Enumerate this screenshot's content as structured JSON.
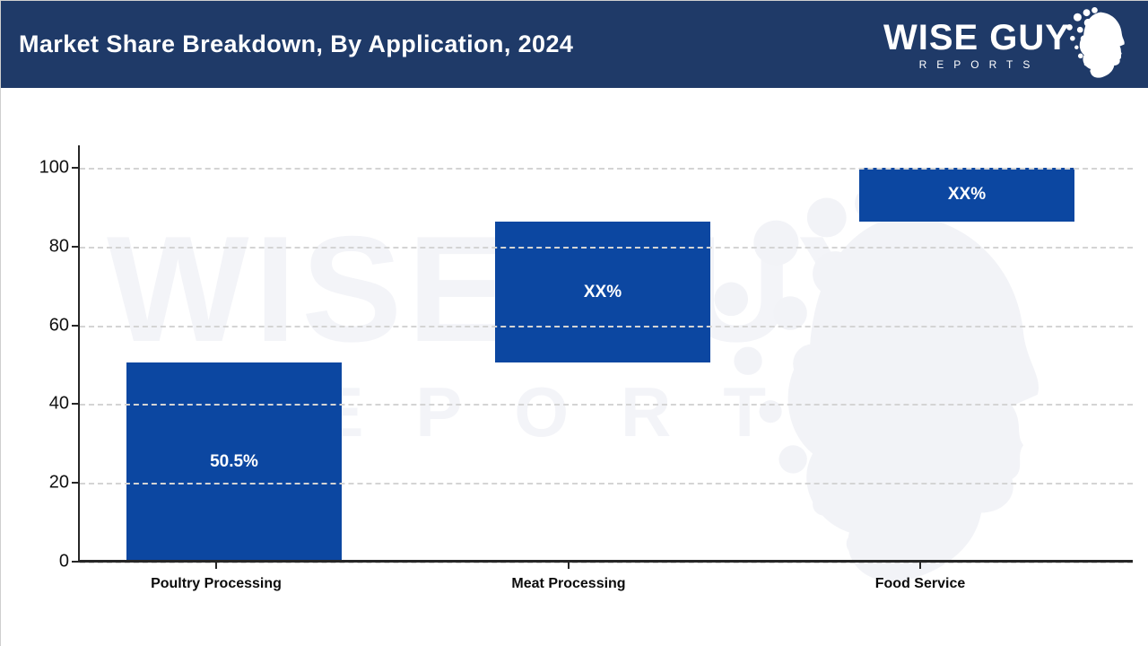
{
  "header": {
    "title": "Market Share Breakdown, By Application, 2024",
    "brand": {
      "line1": "WISE GUY",
      "line2": "REPORTS"
    }
  },
  "watermark": {
    "line1": "WISE GUY",
    "line2": "REPORTS"
  },
  "chart_data": {
    "type": "bar",
    "subtype": "floating-waterfall",
    "title": "Market Share Breakdown, By Application, 2024",
    "categories": [
      "Poultry Processing",
      "Meat Processing",
      "Food Service"
    ],
    "segments": [
      {
        "category": "Poultry Processing",
        "start": 0,
        "end": 50.5,
        "label": "50.5%"
      },
      {
        "category": "Meat Processing",
        "start": 50.5,
        "end": 86.3,
        "label": "XX%"
      },
      {
        "category": "Food Service",
        "start": 86.3,
        "end": 100,
        "label": "XX%"
      }
    ],
    "ylim": [
      0,
      100
    ],
    "yticks": [
      "0",
      "20",
      "40",
      "60",
      "80",
      "100"
    ],
    "ytick_values": [
      0,
      20,
      40,
      60,
      80,
      100
    ],
    "grid": "horizontal dashed, drawn above bars",
    "legend": "none",
    "xlabel": "",
    "ylabel": ""
  },
  "colors": {
    "header_bg": "#1f3a68",
    "bar": "#0c47a1",
    "bar_label": "#ffffff",
    "gridline": "#d4d4d4",
    "axis": "#262626",
    "watermark": "#f2f3f7",
    "frame_border": "#cfcfcf"
  }
}
